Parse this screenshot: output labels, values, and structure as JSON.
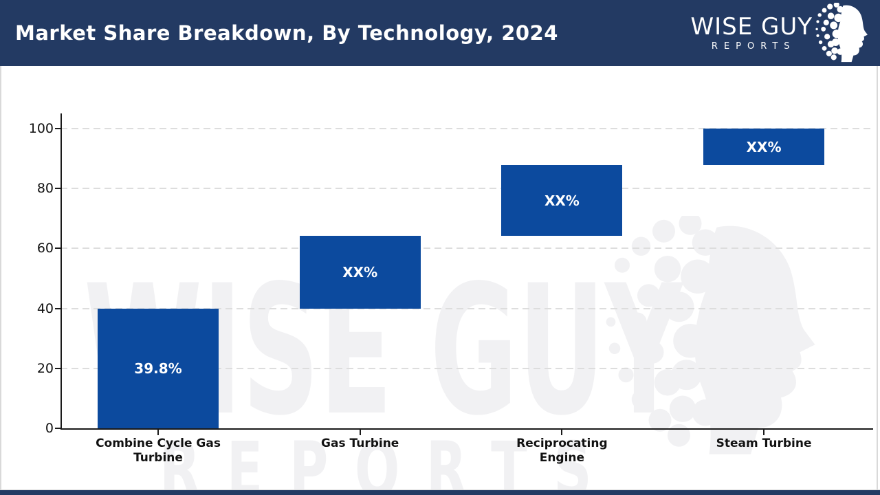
{
  "header": {
    "title": "Market Share Breakdown, By Technology, 2024",
    "background_color": "#233a63",
    "logo": {
      "line1": "WISE GUY",
      "line2": "REPORTS",
      "face_icon": "dotted-head-profile"
    }
  },
  "watermark": {
    "line1": "WISE GUY",
    "line2": "REPORTS",
    "color": "#f1f1f3"
  },
  "footer": {
    "background_color": "#233a63"
  },
  "chart_data": {
    "type": "bar",
    "subtype": "waterfall",
    "title": "Market Share Breakdown, By Technology, 2024",
    "categories": [
      "Combine Cycle Gas\nTurbine",
      "Gas Turbine",
      "Reciprocating\nEngine",
      "Steam Turbine"
    ],
    "segments": [
      {
        "category": "Combine Cycle Gas\nTurbine",
        "start": 0,
        "end": 39.8,
        "label": "39.8%"
      },
      {
        "category": "Gas Turbine",
        "start": 39.8,
        "end": 64.2,
        "label": "XX%"
      },
      {
        "category": "Reciprocating\nEngine",
        "start": 64.2,
        "end": 87.8,
        "label": "XX%"
      },
      {
        "category": "Steam Turbine",
        "start": 87.8,
        "end": 100,
        "label": "XX%"
      }
    ],
    "values_pct": [
      39.8,
      24.4,
      23.6,
      12.2
    ],
    "y_ticks": [
      0,
      20,
      40,
      60,
      80,
      100
    ],
    "ylim": [
      0,
      100
    ],
    "xlabel": "",
    "ylabel": "",
    "grid": "dashed-horizontal",
    "legend": "none",
    "bar_color": "#0c4a9e",
    "bar_label_color": "#ffffff",
    "gridline_color": "#dddddd",
    "axis_color": "#1a1a1a"
  }
}
